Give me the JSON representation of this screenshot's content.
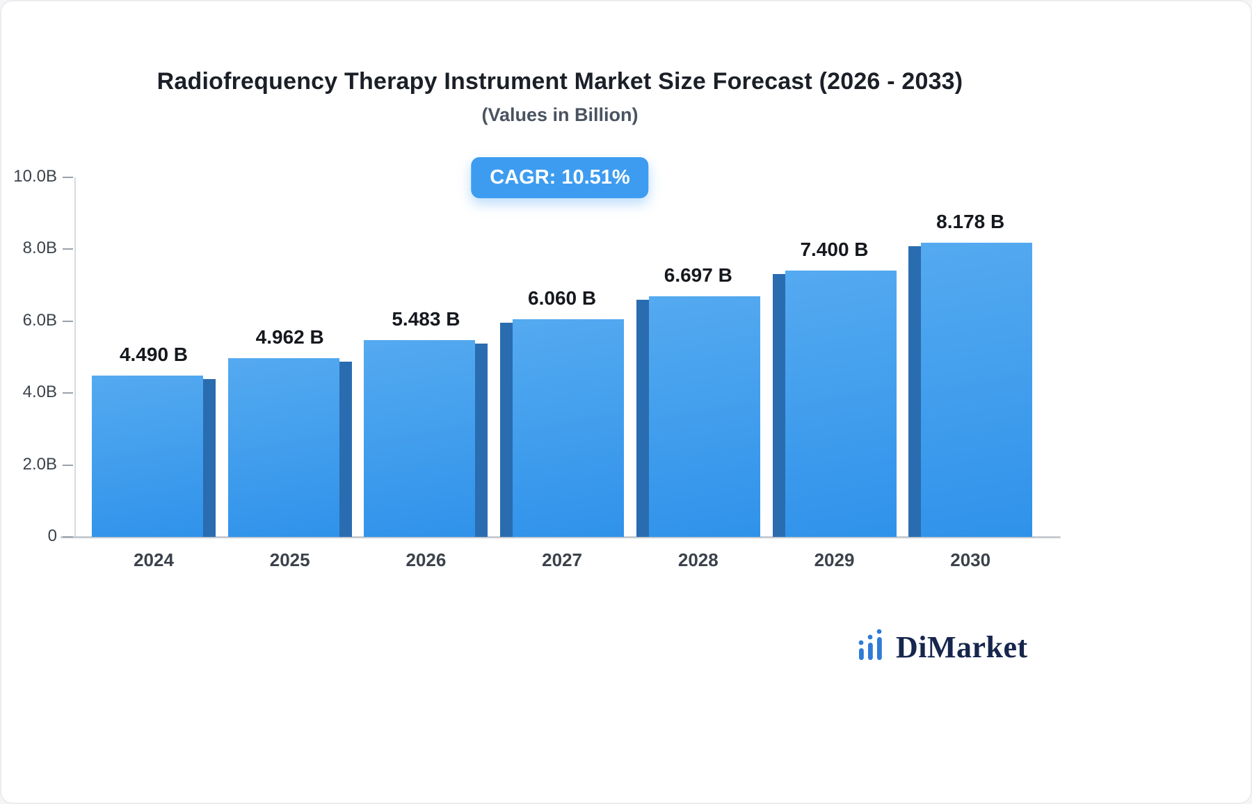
{
  "title": "Radiofrequency Therapy Instrument Market Size Forecast (2026 - 2033)",
  "subtitle": "(Values in Billion)",
  "cagr_badge": "CAGR: 10.51%",
  "chart_data": {
    "type": "bar",
    "categories": [
      "2024",
      "2025",
      "2026",
      "2027",
      "2028",
      "2029",
      "2030"
    ],
    "values": [
      4.49,
      4.962,
      5.483,
      6.06,
      6.697,
      7.4,
      8.178
    ],
    "value_labels": [
      "4.490 B",
      "4.962 B",
      "5.483 B",
      "6.060 B",
      "6.697 B",
      "7.400 B",
      "8.178 B"
    ],
    "title": "Radiofrequency Therapy Instrument Market Size Forecast (2026 - 2033)",
    "xlabel": "",
    "ylabel": "",
    "ylim": [
      0,
      10
    ],
    "grid": false,
    "legend": "none",
    "yticks": [
      {
        "label": "10.0B",
        "value": 10
      },
      {
        "label": "8.0B",
        "value": 8
      },
      {
        "label": "6.0B",
        "value": 6
      },
      {
        "label": "4.0B",
        "value": 4
      },
      {
        "label": "2.0B",
        "value": 2
      },
      {
        "label": "0",
        "value": 0
      }
    ],
    "bar_color_top": "#55aaf0",
    "bar_color_bottom": "#2f92ea",
    "bar_side_color": "#2a6cb0",
    "badge_color": "#3d9cf0",
    "sides": [
      "right",
      "right",
      "right",
      "left",
      "left",
      "left",
      "left"
    ]
  },
  "logo": {
    "text": "DiMarket",
    "icon": "bar-chart-icon",
    "text_color": "#16264d",
    "icon_color": "#2e7cd6"
  }
}
